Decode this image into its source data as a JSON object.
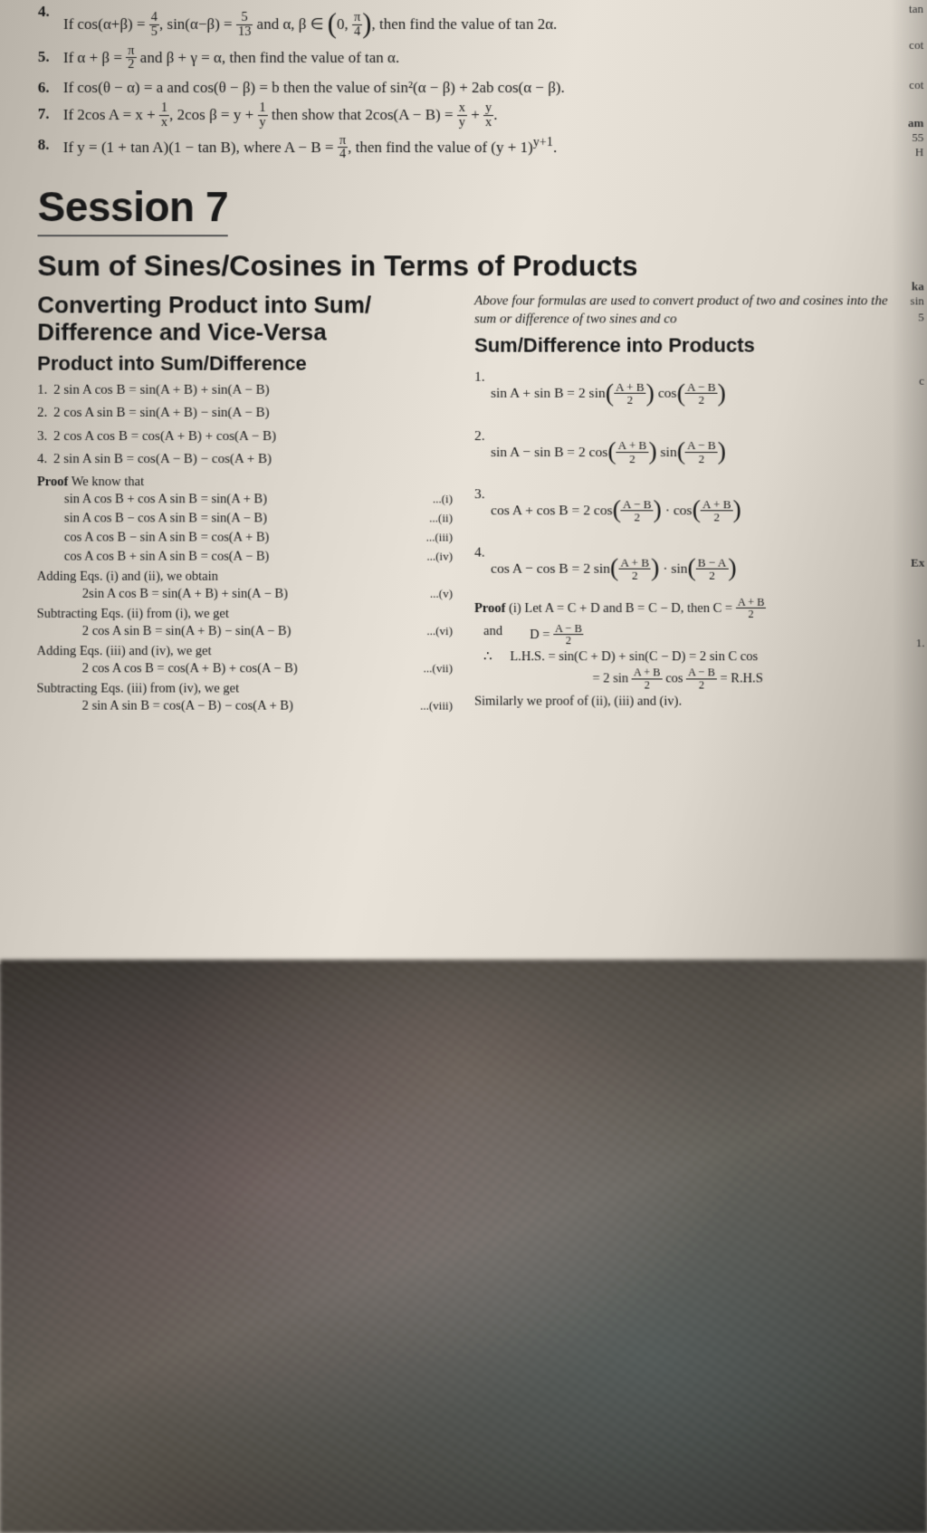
{
  "questions": [
    {
      "num": "4.",
      "html": "If cos(α+β) = <span class='frac'><span class='n'>4</span><span class='d'>5</span></span>, sin(α−β) = <span class='frac'><span class='n'>5</span><span class='d'>13</span></span> and α, β ∈ <span class='bigparen-l'></span>0, <span class='frac'><span class='n'>π</span><span class='d'>4</span></span><span class='bigparen-r'></span>, then find the value of tan 2α."
    },
    {
      "num": "5.",
      "html": "If α + β = <span class='frac'><span class='n'>π</span><span class='d'>2</span></span> and β + γ = α, then find the value of tan α."
    },
    {
      "num": "6.",
      "html": "If cos(θ − α) = a and cos(θ − β) = b then the value of sin²(α − β) + 2ab cos(α − β)."
    },
    {
      "num": "7.",
      "html": "If 2cos A = x + <span class='frac'><span class='n'>1</span><span class='d'>x</span></span>, 2cos β = y + <span class='frac'><span class='n'>1</span><span class='d'>y</span></span> then show that 2cos(A − B) = <span class='frac'><span class='n'>x</span><span class='d'>y</span></span> + <span class='frac'><span class='n'>y</span><span class='d'>x</span></span>."
    },
    {
      "num": "8.",
      "html": "If y = (1 + tan A)(1 − tan B), where A − B = <span class='frac'><span class='n'>π</span><span class='d'>4</span></span>, then find the value of (y + 1)<sup>y+1</sup>."
    }
  ],
  "session_title": "Session 7",
  "section_title": "Sum of Sines/Cosines in Terms of Products",
  "left": {
    "h1": "Converting Product into Sum/ Difference and Vice-Versa",
    "h2": "Product into Sum/Difference",
    "formulas": [
      {
        "n": "1.",
        "t": "2 sin A cos B = sin(A + B) + sin(A − B)"
      },
      {
        "n": "2.",
        "t": "2 cos A sin B = sin(A + B) − sin(A − B)"
      },
      {
        "n": "3.",
        "t": "2 cos A cos B = cos(A + B) + cos(A − B)"
      },
      {
        "n": "4.",
        "t": "2 sin A sin B = cos(A − B) − cos(A + B)"
      }
    ],
    "proof_label": "Proof",
    "proof_intro": "We know that",
    "proof_eqs": [
      {
        "t": "sin A cos B + cos A sin B = sin(A + B)",
        "l": "...(i)"
      },
      {
        "t": "sin A cos B − cos A sin B = sin(A − B)",
        "l": "...(ii)"
      },
      {
        "t": "cos A cos B − sin A sin B = cos(A + B)",
        "l": "...(iii)"
      },
      {
        "t": "cos A cos B + sin A sin B = cos(A − B)",
        "l": "...(iv)"
      }
    ],
    "steps": [
      {
        "text": "Adding Eqs. (i) and (ii), we obtain",
        "eq": "2sin A cos B = sin(A + B) + sin(A − B)",
        "l": "...(v)"
      },
      {
        "text": "Subtracting Eqs. (ii) from (i), we get",
        "eq": "2 cos A sin B = sin(A + B) − sin(A − B)",
        "l": "...(vi)"
      },
      {
        "text": "Adding Eqs. (iii) and (iv), we get",
        "eq": "2 cos A cos B = cos(A + B) + cos(A − B)",
        "l": "...(vii)"
      },
      {
        "text": "Subtracting Eqs. (iii) from (iv), we get",
        "eq": "2 sin A sin B = cos(A − B) − cos(A + B)",
        "l": "...(viii)"
      }
    ]
  },
  "right": {
    "intro": "Above four formulas are used to convert product of two and cosines into the sum or difference of two sines and co",
    "h2": "Sum/Difference into Products",
    "formulas": [
      {
        "n": "1.",
        "html": "sin A + sin B = 2 sin<span class='bigparen-l'></span><span class='frac'><span class='n'>A + B</span><span class='d'>2</span></span><span class='bigparen-r'></span> cos<span class='bigparen-l'></span><span class='frac'><span class='n'>A − B</span><span class='d'>2</span></span><span class='bigparen-r'></span>"
      },
      {
        "n": "2.",
        "html": "sin A − sin B = 2 cos<span class='bigparen-l'></span><span class='frac'><span class='n'>A + B</span><span class='d'>2</span></span><span class='bigparen-r'></span> sin<span class='bigparen-l'></span><span class='frac'><span class='n'>A − B</span><span class='d'>2</span></span><span class='bigparen-r'></span>"
      },
      {
        "n": "3.",
        "html": "cos A + cos B = 2 cos<span class='bigparen-l'></span><span class='frac'><span class='n'>A − B</span><span class='d'>2</span></span><span class='bigparen-r'></span> · cos<span class='bigparen-l'></span><span class='frac'><span class='n'>A + B</span><span class='d'>2</span></span><span class='bigparen-r'></span>"
      },
      {
        "n": "4.",
        "html": "cos A − cos B = 2 sin<span class='bigparen-l'></span><span class='frac'><span class='n'>A + B</span><span class='d'>2</span></span><span class='bigparen-r'></span> · sin<span class='bigparen-l'></span><span class='frac'><span class='n'>B − A</span><span class='d'>2</span></span><span class='bigparen-r'></span>"
      }
    ],
    "proof_line1_html": "<b>Proof</b> (i) Let A = C + D and B = C − D, then C = <span class='frac'><span class='n'>A + B</span><span class='d'>2</span></span>",
    "and_label": "and",
    "d_eq_html": "D = <span class='frac'><span class='n'>A − B</span><span class='d'>2</span></span>",
    "therefore": "∴",
    "lhs_line1": "L.H.S. = sin(C + D) + sin(C − D) = 2 sin C cos",
    "lhs_line2_html": "= 2 sin <span class='frac'><span class='n'>A + B</span><span class='d'>2</span></span> cos <span class='frac'><span class='n'>A − B</span><span class='d'>2</span></span> = R.H.S",
    "similar": "Similarly we proof of (ii), (iii) and (iv)."
  },
  "margin": {
    "tan": "tan",
    "cot1": "cot",
    "cot2": "cot",
    "am": "am",
    "n55": "55",
    "H": "H",
    "ka": "ka",
    "sin": "sin",
    "s5": "5",
    "c": "c",
    "Ex": "Ex",
    "one": "1."
  }
}
